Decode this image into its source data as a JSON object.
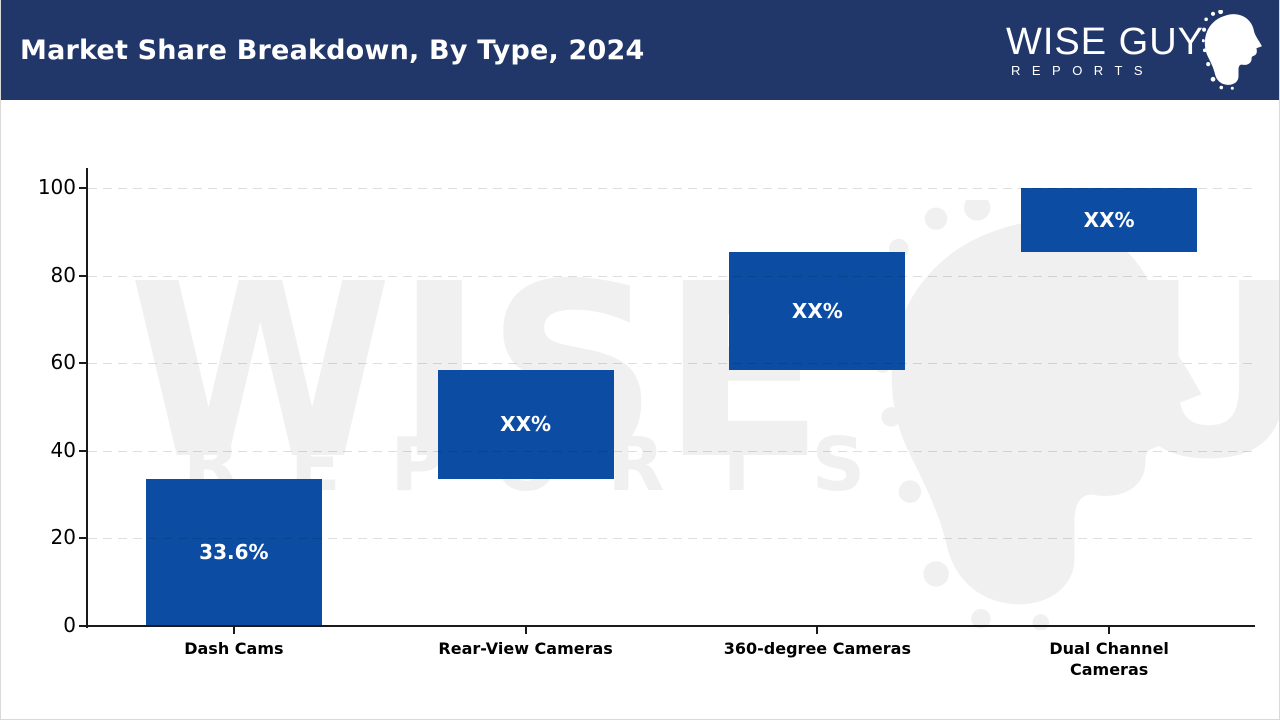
{
  "header": {
    "title": "Market Share Breakdown, By Type, 2024",
    "logo": {
      "line1": "WISE GUY",
      "line2": "REPORTS"
    }
  },
  "watermark": {
    "line1": "WISE GUY",
    "line2": "REPORTS"
  },
  "chart_data": {
    "type": "bar",
    "subtype": "waterfall",
    "title": "Market Share Breakdown, By Type, 2024",
    "categories": [
      "Dash Cams",
      "Rear-View Cameras",
      "360-degree Cameras",
      "Dual Channel\nCameras"
    ],
    "bar_starts": [
      0,
      33.6,
      58.5,
      85.5
    ],
    "bar_ends": [
      33.6,
      58.5,
      85.5,
      100
    ],
    "bar_labels": [
      "33.6%",
      "XX%",
      "XX%",
      "XX%"
    ],
    "xlabel": "",
    "ylabel": "",
    "ylim": [
      0,
      100
    ],
    "yticks": [
      0,
      20,
      40,
      60,
      80,
      100
    ],
    "grid": "dashed horizontal",
    "legend": "none",
    "bar_color": "#0C4CA3"
  },
  "colors": {
    "header_bg": "#213769",
    "bar": "#0C4CA3",
    "axis": "#1a1a1a",
    "watermark": "#f0f0f0",
    "page_border": "#d9d9d9",
    "title_text": "#ffffff",
    "bar_label_text": "#ffffff"
  }
}
